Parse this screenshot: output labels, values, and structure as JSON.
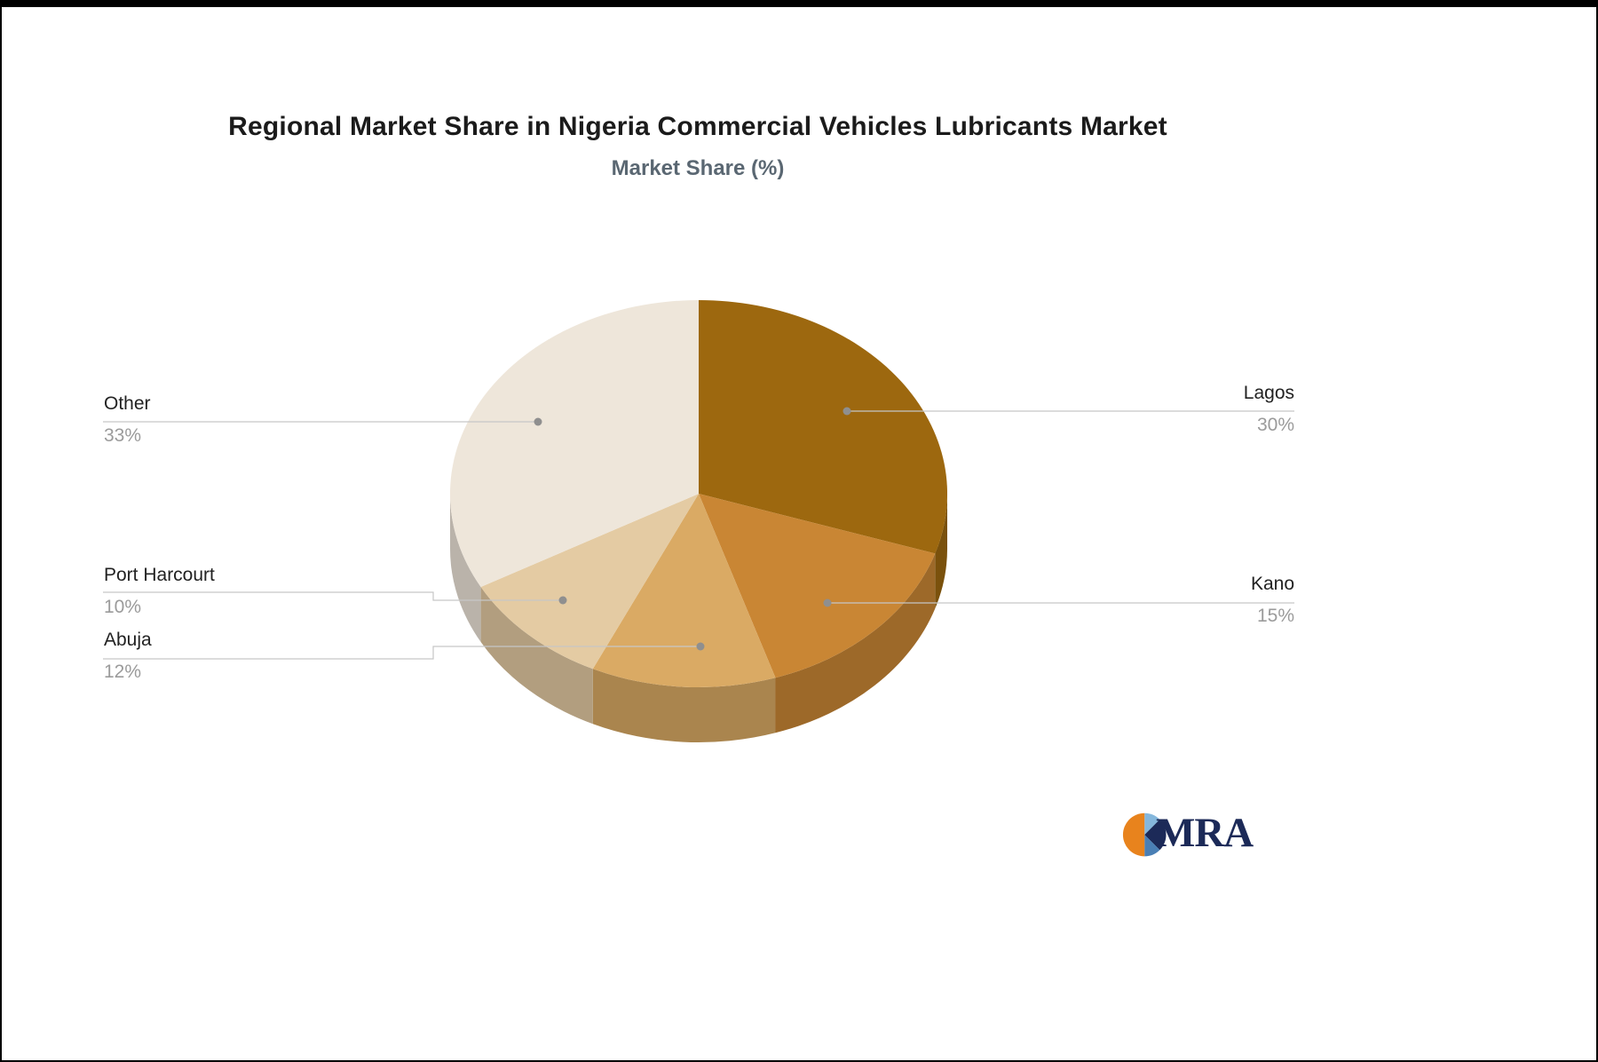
{
  "title": "Regional Market Share in Nigeria Commercial Vehicles Lubricants Market",
  "subtitle": "Market Share (%)",
  "chart_data": {
    "type": "pie",
    "style": "3d",
    "title": "Regional Market Share in Nigeria Commercial Vehicles Lubricants Market",
    "subtitle": "Market Share (%)",
    "unit": "%",
    "categories": [
      "Lagos",
      "Kano",
      "Abuja",
      "Port Harcourt",
      "Other"
    ],
    "values": [
      30,
      15,
      12,
      10,
      33
    ],
    "labels_pct": [
      "30%",
      "15%",
      "12%",
      "10%",
      "33%"
    ],
    "colors": [
      "#9d680f",
      "#c98634",
      "#daaa64",
      "#e4cba3",
      "#eee6da"
    ],
    "start_angle_deg": 0,
    "direction": "clockwise",
    "legend_position": "none",
    "leader_line_color": "#c6c6c6",
    "leader_dot_color": "#8f8f8f"
  },
  "logo": {
    "text": "MRA",
    "navy": "#1c2a58",
    "orange": "#e8831d",
    "light_blue": "#85b7dc",
    "steel_blue": "#4a7fb5"
  }
}
